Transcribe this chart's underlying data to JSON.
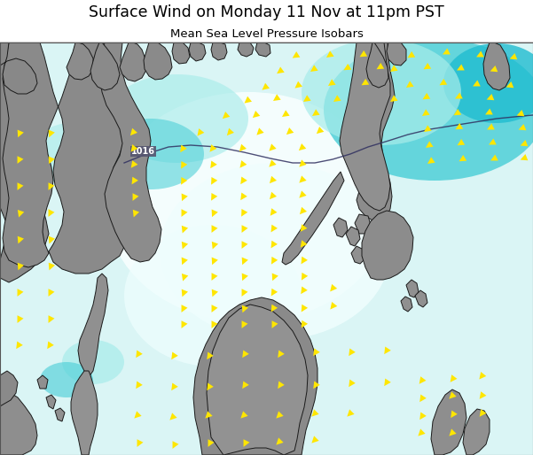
{
  "title": "Surface Wind on Monday 11 Nov at 11pm PST",
  "subtitle": "Mean Sea Level Pressure Isobars",
  "title_fontsize": 12.5,
  "subtitle_fontsize": 9.5,
  "fig_width": 6.01,
  "fig_height": 5.14,
  "dpi": 100,
  "bg_color": "#ffffff",
  "ocean_base": "#e8fafa",
  "ocean_cyan_light": "#a8ecea",
  "ocean_cyan_mid": "#50d0d8",
  "ocean_cyan_deep": "#20bcd0",
  "ocean_white": "#f8ffff",
  "land_base": "#909090",
  "land_dark": "#707070",
  "land_edge": "#1a1a1a",
  "arrow_fill": "#ffe600",
  "arrow_edge": "#888800",
  "isobar_color": "#303060",
  "pressure_text": "1016",
  "header_line_color": "#cccccc"
}
